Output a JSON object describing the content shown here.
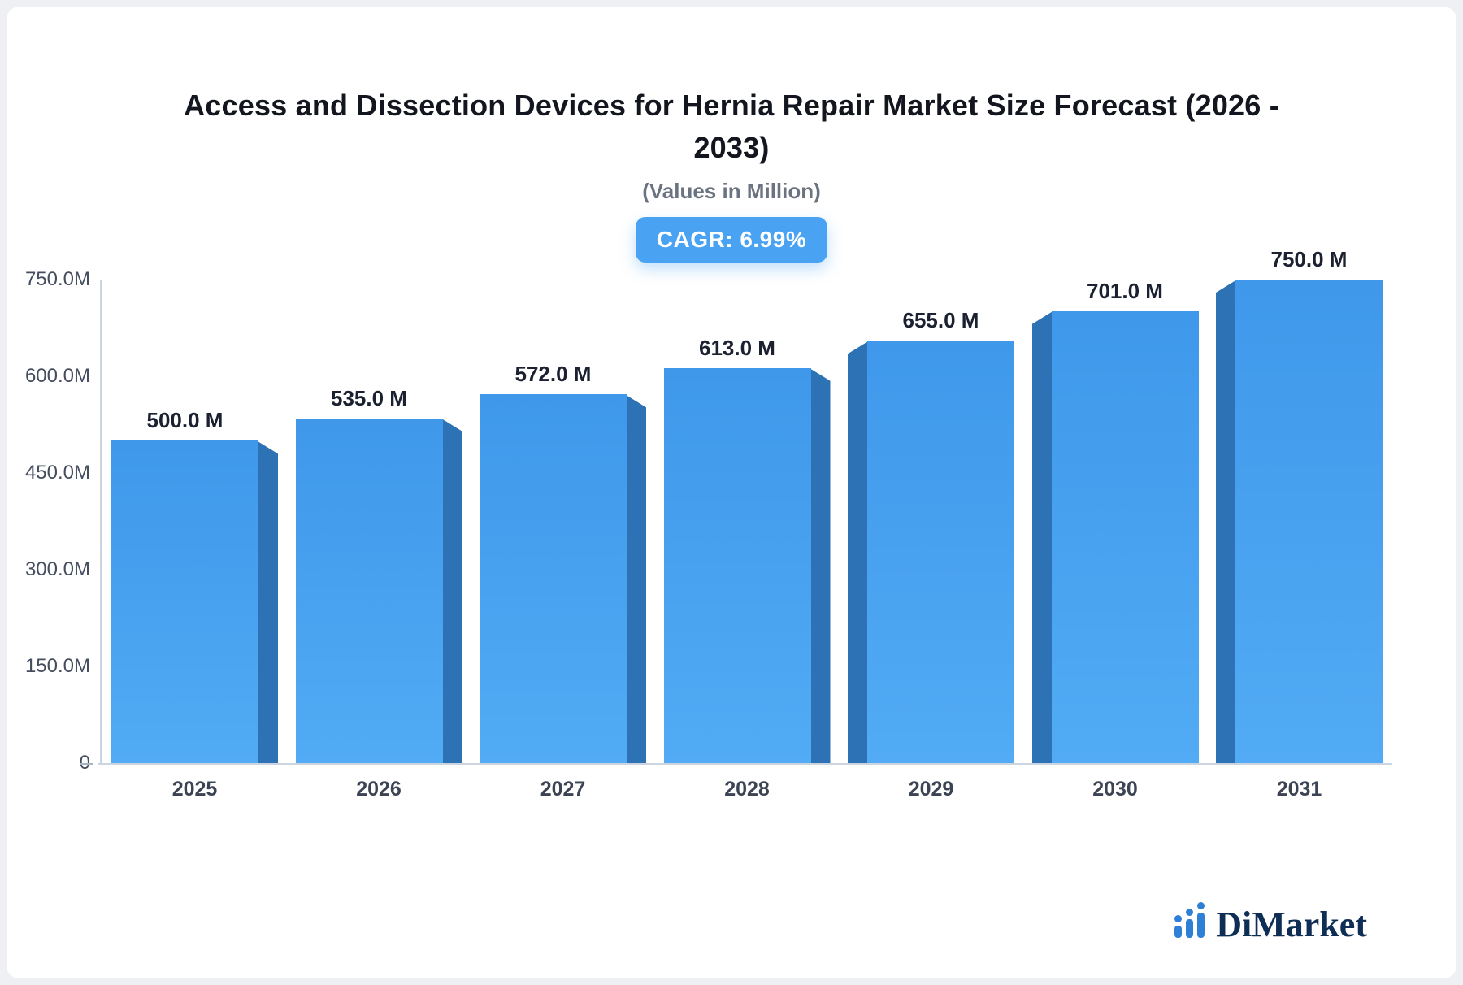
{
  "page": {
    "background": "#eef0f4",
    "card_background": "#ffffff"
  },
  "header": {
    "title_lines": [
      "Access and Dissection Devices for Hernia Repair Market Size Forecast (2026 -",
      "2033)"
    ],
    "subtitle": "(Values in Million)",
    "cagr_badge": "CAGR: 6.99%"
  },
  "chart_data": {
    "type": "bar",
    "title": "Access and Dissection Devices for Hernia Repair Market Size Forecast (2026 - 2033)",
    "subtitle": "(Values in Million)",
    "cagr": "CAGR: 6.99%",
    "categories": [
      "2025",
      "2026",
      "2027",
      "2028",
      "2029",
      "2030",
      "2031"
    ],
    "values": [
      500.0,
      535.0,
      572.0,
      613.0,
      655.0,
      701.0,
      750.0
    ],
    "value_labels": [
      "500.0 M",
      "535.0 M",
      "572.0 M",
      "613.0 M",
      "655.0 M",
      "701.0 M",
      "750.0 M"
    ],
    "y_ticks": [
      {
        "label": "750.0M",
        "value": 750
      },
      {
        "label": "600.0M",
        "value": 600
      },
      {
        "label": "450.0M",
        "value": 450
      },
      {
        "label": "300.0M",
        "value": 300
      },
      {
        "label": "150.0M",
        "value": 150
      },
      {
        "label": "0",
        "value": 0
      }
    ],
    "ylim": [
      0,
      750
    ],
    "ylabel": "",
    "xlabel": "",
    "grid": false,
    "legend": null,
    "colors": {
      "bar_face_top": "#3f98ea",
      "bar_face_bottom": "#52abf4",
      "bar_side": "#2d72b4",
      "badge": "#4aa2f2",
      "axis": "#ccd4df"
    }
  },
  "footer": {
    "brand": "DiMarket",
    "brand_color": "#0e2e55",
    "icon_color": "#2e80d6"
  }
}
